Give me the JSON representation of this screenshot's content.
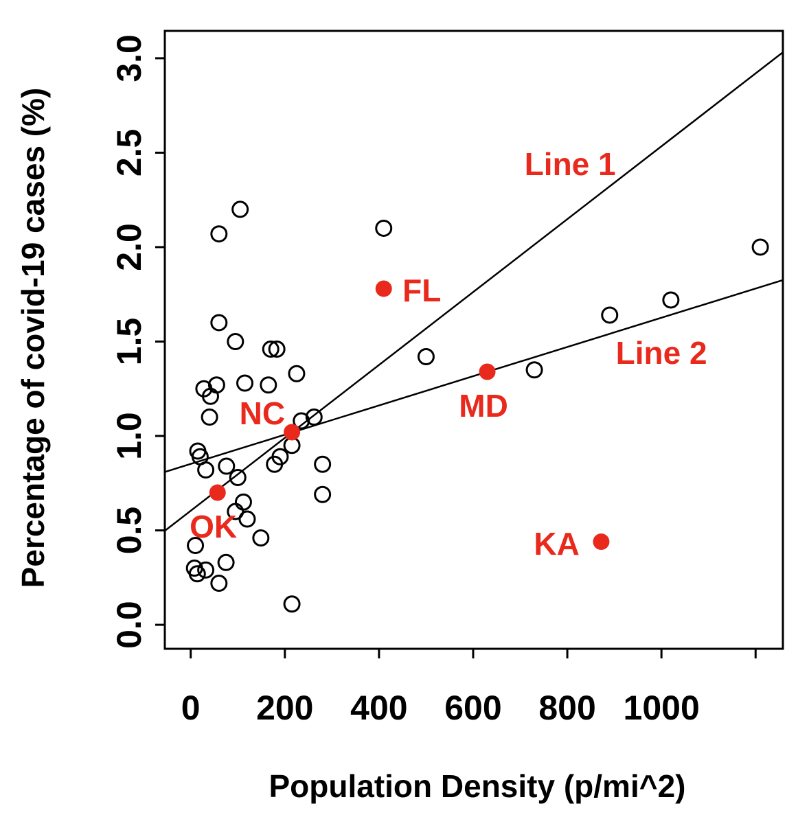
{
  "figure": {
    "x_axis_title": "Population Density (p/mi^2)",
    "y_axis_title": "Percentage of covid-19 cases (%)",
    "accent_color": "#e8291c"
  },
  "chart_data": {
    "type": "scatter",
    "title": "",
    "xlabel": "Population Density (p/mi^2)",
    "ylabel": "Percentage of covid-19 cases (%)",
    "xlim": [
      -55,
      1258
    ],
    "ylim": [
      -0.127,
      3.145
    ],
    "grid": false,
    "legend": "none",
    "x_ticks": {
      "values": [
        0,
        200,
        400,
        600,
        800,
        1000,
        1200
      ],
      "labels": [
        "0",
        "200",
        "400",
        "600",
        "800",
        "1000",
        ""
      ]
    },
    "y_ticks": {
      "values": [
        0,
        0.5,
        1,
        1.5,
        2,
        2.5,
        3
      ],
      "labels": [
        "0.0",
        "0.5",
        "1.0",
        "1.5",
        "2.0",
        "2.5",
        "3.0"
      ]
    },
    "series": [
      {
        "name": "states-unlabeled",
        "marker": "open-circle",
        "color": "#000000",
        "points": [
          [
            60,
            2.07
          ],
          [
            105,
            2.2
          ],
          [
            410,
            2.1
          ],
          [
            1210,
            2.0
          ],
          [
            60,
            1.6
          ],
          [
            95,
            1.5
          ],
          [
            170,
            1.46
          ],
          [
            183,
            1.46
          ],
          [
            500,
            1.42
          ],
          [
            890,
            1.64
          ],
          [
            1020,
            1.72
          ],
          [
            730,
            1.35
          ],
          [
            225,
            1.33
          ],
          [
            115,
            1.28
          ],
          [
            28,
            1.25
          ],
          [
            42,
            1.21
          ],
          [
            55,
            1.27
          ],
          [
            165,
            1.27
          ],
          [
            40,
            1.1
          ],
          [
            235,
            1.08
          ],
          [
            262,
            1.1
          ],
          [
            215,
            0.95
          ],
          [
            190,
            0.89
          ],
          [
            178,
            0.85
          ],
          [
            15,
            0.92
          ],
          [
            20,
            0.89
          ],
          [
            32,
            0.82
          ],
          [
            76,
            0.84
          ],
          [
            280,
            0.85
          ],
          [
            100,
            0.78
          ],
          [
            280,
            0.69
          ],
          [
            112,
            0.65
          ],
          [
            95,
            0.6
          ],
          [
            120,
            0.56
          ],
          [
            149,
            0.46
          ],
          [
            10,
            0.42
          ],
          [
            32,
            0.29
          ],
          [
            8,
            0.3
          ],
          [
            14,
            0.27
          ],
          [
            75,
            0.33
          ],
          [
            60,
            0.22
          ],
          [
            215,
            0.11
          ]
        ]
      },
      {
        "name": "states-highlighted",
        "marker": "filled-circle",
        "color": "#e8291c",
        "points": [
          {
            "label": "FL",
            "x": 410,
            "y": 1.78,
            "label_x": 450,
            "label_y": 1.77,
            "anchor": "start"
          },
          {
            "label": "NC",
            "x": 215,
            "y": 1.02,
            "label_x": 152,
            "label_y": 1.12,
            "anchor": "middle"
          },
          {
            "label": "OK",
            "x": 57,
            "y": 0.7,
            "label_x": 48,
            "label_y": 0.52,
            "anchor": "middle"
          },
          {
            "label": "MD",
            "x": 630,
            "y": 1.34,
            "label_x": 622,
            "label_y": 1.16,
            "anchor": "middle"
          },
          {
            "label": "KA",
            "x": 872,
            "y": 0.44,
            "label_x": 826,
            "label_y": 0.43,
            "anchor": "end"
          }
        ]
      }
    ],
    "lines": [
      {
        "name": "Line 1",
        "slope": 0.00193,
        "intercept": 0.604,
        "color": "#000000",
        "label_color": "#e8291c",
        "label_x": 806,
        "label_y": 2.44
      },
      {
        "name": "Line 2",
        "slope": 0.000774,
        "intercept": 0.852,
        "color": "#000000",
        "label_color": "#e8291c",
        "label_x": 1000,
        "label_y": 1.44
      }
    ]
  }
}
